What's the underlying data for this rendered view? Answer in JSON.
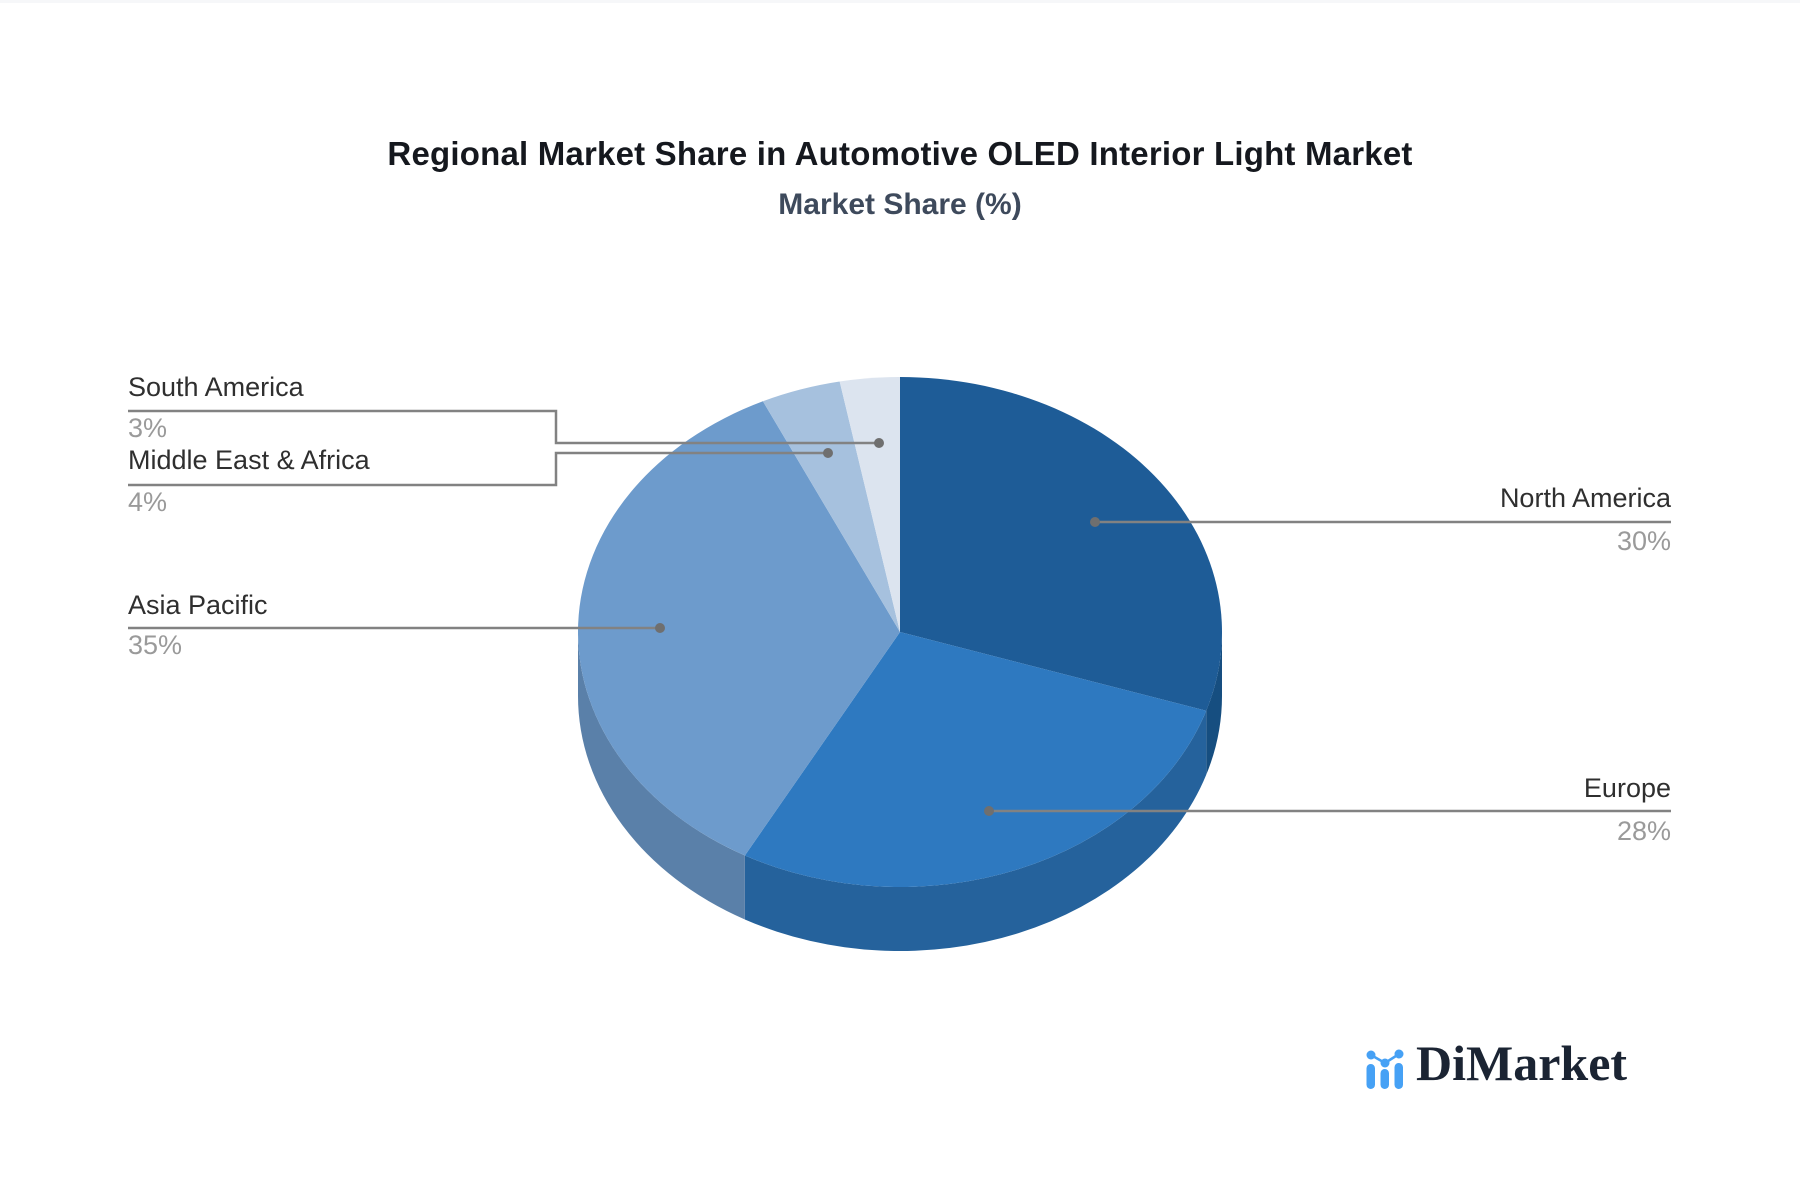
{
  "header": {
    "title": "Regional Market Share in Automotive OLED Interior Light Market",
    "subtitle": "Market Share (%)"
  },
  "chart_data": {
    "type": "pie",
    "title": "Regional Market Share in Automotive OLED Interior Light Market",
    "subtitle": "Market Share (%)",
    "unit": "%",
    "effect_3d": true,
    "start_angle_deg": -90,
    "direction": "clockwise",
    "legend_position": "callout-labels",
    "labels": [
      "North America",
      "Europe",
      "Asia Pacific",
      "Middle East & Africa",
      "South America"
    ],
    "values": [
      30,
      28,
      35,
      4,
      3
    ],
    "slices": [
      {
        "label": "North America",
        "value": 30,
        "value_label": "30%",
        "color": "#1E5C97",
        "side_color": "#164E80"
      },
      {
        "label": "Europe",
        "value": 28,
        "value_label": "28%",
        "color": "#2E79C0",
        "side_color": "#25629C"
      },
      {
        "label": "Asia Pacific",
        "value": 35,
        "value_label": "35%",
        "color": "#6D9BCC",
        "side_color": "#5A80A9"
      },
      {
        "label": "Middle East & Africa",
        "value": 4,
        "value_label": "4%",
        "color": "#A6C1DE",
        "side_color": "#8BA3BD"
      },
      {
        "label": "South America",
        "value": 3,
        "value_label": "3%",
        "color": "#DCE4EF",
        "side_color": "#B9C4D3"
      }
    ]
  },
  "branding": {
    "logo_text": "DiMarket"
  },
  "style": {
    "leader_line_color": "#828282",
    "dot_color": "#6f6f6f",
    "logo_icon_color": "#46a1f5"
  }
}
